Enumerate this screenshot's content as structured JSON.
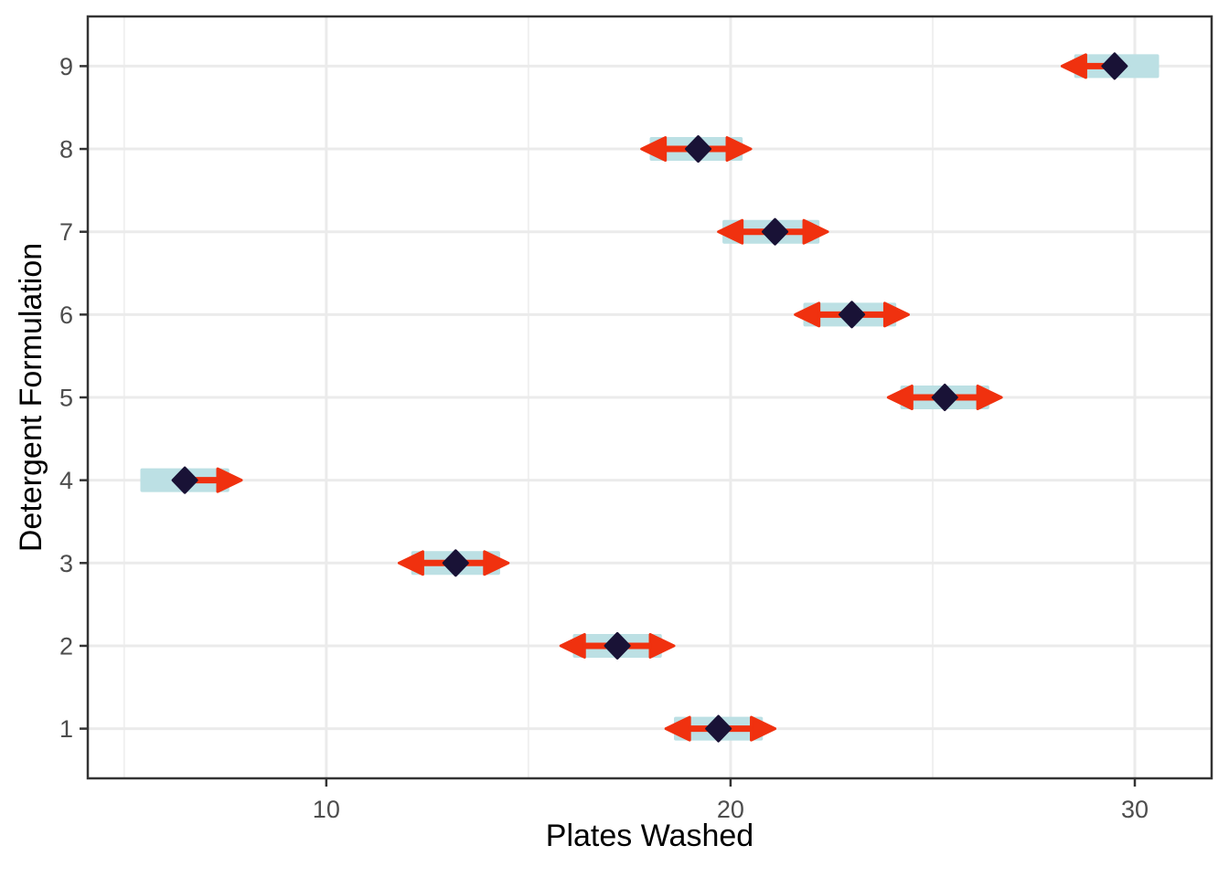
{
  "chart_data": {
    "type": "scatter",
    "subtype": "point-estimates-with-ci-bands-and-comparison-arrows",
    "title": "",
    "xlabel": "Plates Washed",
    "ylabel": "Detergent Formulation",
    "xlim": [
      4.1,
      31.9
    ],
    "ylim": [
      0.4,
      9.6
    ],
    "x_tick_values": [
      10,
      20,
      30
    ],
    "x_tick_labels": [
      "10",
      "20",
      "30"
    ],
    "x_minor_gridlines": [
      5,
      15,
      25
    ],
    "y_tick_values": [
      1,
      2,
      3,
      4,
      5,
      6,
      7,
      8,
      9
    ],
    "y_tick_labels": [
      "1",
      "2",
      "3",
      "4",
      "5",
      "6",
      "7",
      "8",
      "9"
    ],
    "grid": "major-x, major-y, minor-x",
    "legend": "none",
    "series": [
      {
        "name": "formulation-estimates",
        "points": [
          {
            "formulation": 1,
            "estimate": 19.7,
            "ci_low": 18.6,
            "ci_high": 20.8,
            "arrow_low": 18.4,
            "arrow_high": 21.1,
            "left_arrow": true,
            "right_arrow": true
          },
          {
            "formulation": 2,
            "estimate": 17.2,
            "ci_low": 16.1,
            "ci_high": 18.3,
            "arrow_low": 15.8,
            "arrow_high": 18.6,
            "left_arrow": true,
            "right_arrow": true
          },
          {
            "formulation": 3,
            "estimate": 13.2,
            "ci_low": 12.1,
            "ci_high": 14.3,
            "arrow_low": 11.8,
            "arrow_high": 14.5,
            "left_arrow": true,
            "right_arrow": true
          },
          {
            "formulation": 4,
            "estimate": 6.5,
            "ci_low": 5.4,
            "ci_high": 7.6,
            "arrow_low": 6.5,
            "arrow_high": 7.9,
            "left_arrow": false,
            "right_arrow": true
          },
          {
            "formulation": 5,
            "estimate": 25.3,
            "ci_low": 24.2,
            "ci_high": 26.4,
            "arrow_low": 23.9,
            "arrow_high": 26.7,
            "left_arrow": true,
            "right_arrow": true
          },
          {
            "formulation": 6,
            "estimate": 23.0,
            "ci_low": 21.8,
            "ci_high": 24.1,
            "arrow_low": 21.6,
            "arrow_high": 24.4,
            "left_arrow": true,
            "right_arrow": true
          },
          {
            "formulation": 7,
            "estimate": 21.1,
            "ci_low": 19.8,
            "ci_high": 22.2,
            "arrow_low": 19.7,
            "arrow_high": 22.4,
            "left_arrow": true,
            "right_arrow": true
          },
          {
            "formulation": 8,
            "estimate": 19.2,
            "ci_low": 18.0,
            "ci_high": 20.3,
            "arrow_low": 17.8,
            "arrow_high": 20.5,
            "left_arrow": true,
            "right_arrow": true
          },
          {
            "formulation": 9,
            "estimate": 29.5,
            "ci_low": 28.5,
            "ci_high": 30.6,
            "arrow_low": 28.2,
            "arrow_high": 29.5,
            "left_arrow": true,
            "right_arrow": false
          }
        ]
      }
    ],
    "colors": {
      "ci_band": "#BCE0E4",
      "comparison_arrow": "#F0310F",
      "point": "#191236",
      "grid_major": "#EBEBEB",
      "grid_minor": "#F0F0F0",
      "panel_border": "#333333",
      "tick_mark": "#333333",
      "tick_label": "#4D4D4D",
      "axis_title": "#000000",
      "background": "#FFFFFF"
    }
  }
}
